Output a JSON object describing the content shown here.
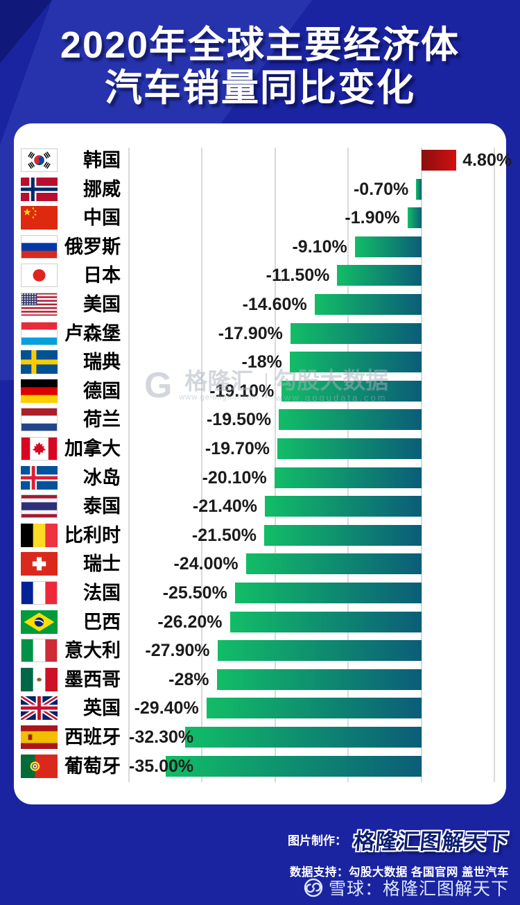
{
  "title": {
    "line1": "2020年全球主要经济体",
    "line2": "汽车销量同比变化"
  },
  "chart_data": {
    "type": "bar",
    "orientation": "horizontal",
    "title": "2020年全球主要经济体汽车销量同比变化",
    "value_unit": "%",
    "xlim": [
      -40,
      10
    ],
    "gridline_step": 10,
    "grid": true,
    "categories": [
      "韩国",
      "挪威",
      "中国",
      "俄罗斯",
      "日本",
      "美国",
      "卢森堡",
      "瑞典",
      "德国",
      "荷兰",
      "加拿大",
      "冰岛",
      "泰国",
      "比利时",
      "瑞士",
      "法国",
      "巴西",
      "意大利",
      "墨西哥",
      "英国",
      "西班牙",
      "葡萄牙"
    ],
    "values": [
      4.8,
      -0.7,
      -1.9,
      -9.1,
      -11.5,
      -14.6,
      -17.9,
      -18,
      -19.1,
      -19.5,
      -19.7,
      -20.1,
      -21.4,
      -21.5,
      -24,
      -25.5,
      -26.2,
      -27.9,
      -28,
      -29.4,
      -32.3,
      -35
    ],
    "labels": [
      "4.80%",
      "-0.70%",
      "-1.90%",
      "-9.10%",
      "-11.50%",
      "-14.60%",
      "-17.90%",
      "-18%",
      "-19.10%",
      "-19.50%",
      "-19.70%",
      "-20.10%",
      "-21.40%",
      "-21.50%",
      "-24.00%",
      "-25.50%",
      "-26.20%",
      "-27.90%",
      "-28%",
      "-29.40%",
      "-32.30%",
      "-35.00%"
    ],
    "flags": [
      "kr",
      "no",
      "cn",
      "ru",
      "jp",
      "us",
      "lu",
      "se",
      "de",
      "nl",
      "ca",
      "is",
      "th",
      "be",
      "ch",
      "fr",
      "br",
      "it",
      "mx",
      "gb",
      "es",
      "pt"
    ],
    "colors": {
      "negative_gradient_left": "#12bd67",
      "negative_gradient_right": "#0b5d78",
      "positive_gradient_left": "#8c0d10",
      "positive_gradient_right": "#cf1111",
      "gridline": "#d9d9d9",
      "label": "#1b1b1b"
    }
  },
  "watermark": {
    "logo_letter": "G",
    "brand1": "格隆汇",
    "brand1_url": "www.gelonghui.com",
    "brand2": "勾股大数据",
    "brand2_url": "www.gogudata.com"
  },
  "footer": {
    "credit_label": "图片制作：",
    "credit_logo": "格隆汇图解天下",
    "data_support": "数据支持：勾股大数据  各国官网  盖世汽车",
    "xueqiu_text": "雪球：格隆汇图解天下"
  }
}
